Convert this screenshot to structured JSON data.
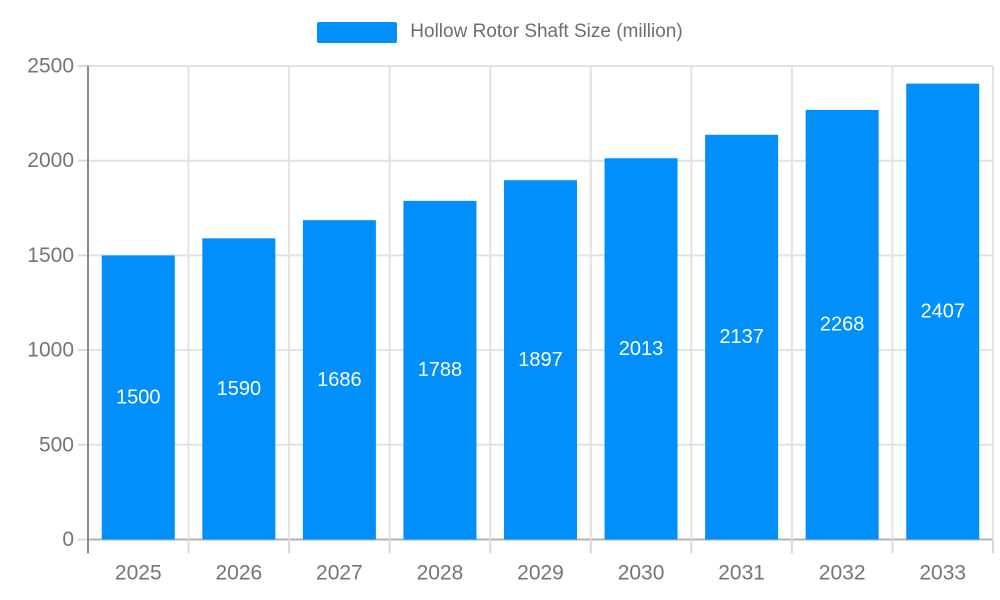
{
  "legend": {
    "label": "Hollow Rotor Shaft Size (million)"
  },
  "chart_data": {
    "type": "bar",
    "title": "Hollow Rotor Shaft Size (million)",
    "categories": [
      "2025",
      "2026",
      "2027",
      "2028",
      "2029",
      "2030",
      "2031",
      "2032",
      "2033"
    ],
    "values": [
      1500,
      1590,
      1686,
      1788,
      1897,
      2013,
      2137,
      2268,
      2407
    ],
    "series_name": "Hollow Rotor Shaft Size (million)",
    "xlabel": "",
    "ylabel": "",
    "ylim": [
      0,
      2500
    ],
    "yticks": [
      0,
      500,
      1000,
      1500,
      2000,
      2500
    ],
    "legend_position": "top",
    "grid": true,
    "value_label_position": "inside-center",
    "colors": {
      "bar": "#008FFB",
      "value_label": "#ffffff",
      "axis_text": "#757575",
      "legend_text": "#6e6e6e",
      "grid_line": "#e2e2e2",
      "y_axis_line": "#8a8a8a",
      "x_axis_line": "#b3b3b3",
      "tick": "#d8d8d8"
    }
  }
}
